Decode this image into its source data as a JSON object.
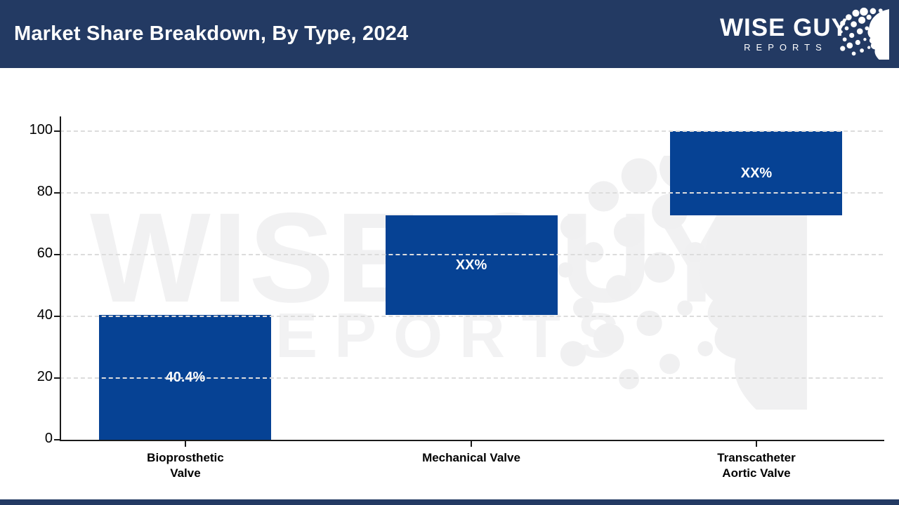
{
  "header": {
    "title": "Market Share Breakdown, By Type, 2024",
    "bg_color": "#233a63",
    "logo": {
      "line1": "WISE GUY",
      "line2": "REPORTS"
    }
  },
  "watermark": {
    "line1": "WISE GUY",
    "line2": "REPORTS"
  },
  "footer": {
    "bg_color": "#233a63"
  },
  "chart_data": {
    "type": "bar",
    "subtype": "floating-waterfall-breakdown",
    "title": "Market Share Breakdown, By Type, 2024",
    "categories": [
      [
        "Bioprosthetic",
        "Valve"
      ],
      [
        "Mechanical Valve"
      ],
      [
        "Transcatheter",
        "Aortic Valve"
      ]
    ],
    "segments": [
      {
        "start": 0,
        "end": 40.4,
        "label": "40.4%"
      },
      {
        "start": 40.4,
        "end": 72.7,
        "label": "XX%"
      },
      {
        "start": 72.7,
        "end": 100,
        "label": "XX%"
      }
    ],
    "yticks": [
      0,
      20,
      40,
      60,
      80,
      100
    ],
    "ylim": [
      0,
      100
    ],
    "xlabel": "",
    "ylabel": "",
    "grid": "horizontal-dashed-over-bars",
    "bar_color": "#064294",
    "label_color": "#ffffff",
    "axis_color": "#1a1a1a",
    "gridline_color": "#dcdcdc",
    "watermark_color": "#f1f1f2"
  }
}
